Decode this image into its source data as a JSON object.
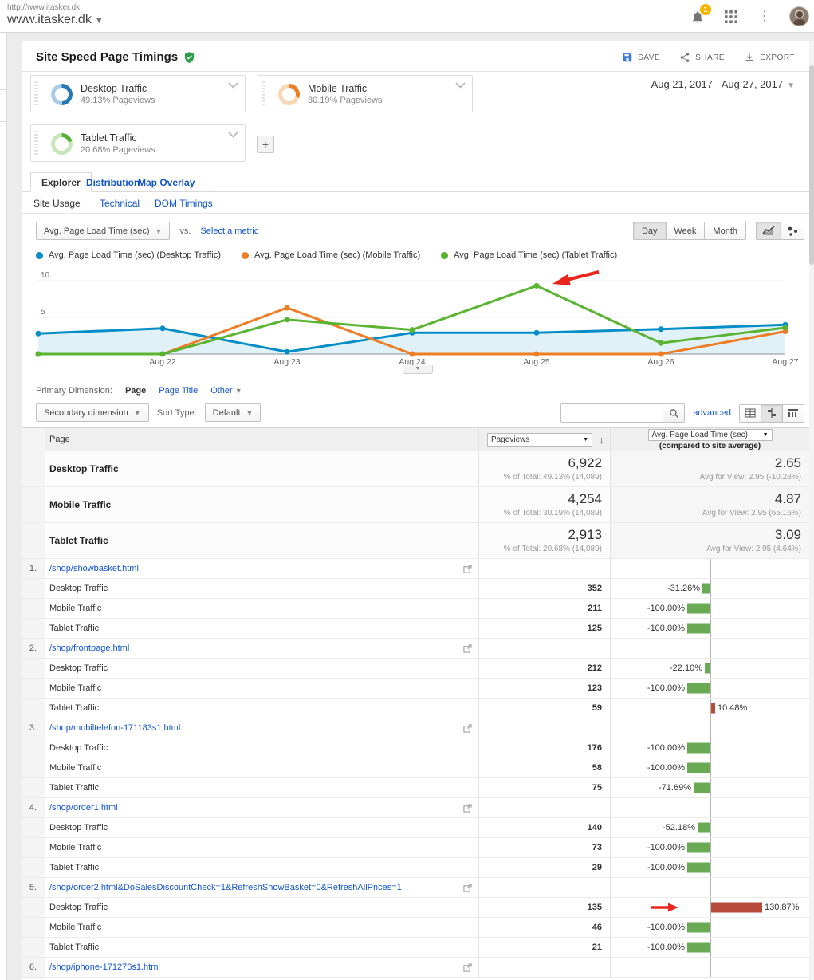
{
  "header": {
    "url": "http://www.itasker.dk",
    "account": "www.itasker.dk",
    "notification_count": "1"
  },
  "report": {
    "title": "Site Speed Page Timings",
    "actions": [
      {
        "label": "SAVE"
      },
      {
        "label": "SHARE"
      },
      {
        "label": "EXPORT"
      }
    ],
    "date_range": "Aug 21, 2017 - Aug 27, 2017"
  },
  "segments": [
    {
      "name": "Desktop Traffic",
      "sub": "49.13% Pageviews",
      "pct": 49.13,
      "color": "#2678b4",
      "color_light": "#a9cde8"
    },
    {
      "name": "Mobile Traffic",
      "sub": "30.19% Pageviews",
      "pct": 30.19,
      "color": "#ed7e26",
      "color_light": "#f8d7b4"
    },
    {
      "name": "Tablet Traffic",
      "sub": "20.68% Pageviews",
      "pct": 20.68,
      "color": "#55b135",
      "color_light": "#c8e6ba"
    }
  ],
  "add_segment_label": "+",
  "tabs": [
    {
      "label": "Explorer",
      "active": true
    },
    {
      "label": "Distribution",
      "active": false
    },
    {
      "label": "Map Overlay",
      "active": false
    }
  ],
  "subtabs": [
    {
      "label": "Site Usage",
      "active": true
    },
    {
      "label": "Technical",
      "active": false
    },
    {
      "label": "DOM Timings",
      "active": false
    }
  ],
  "metric_bar": {
    "metric": "Avg. Page Load Time (sec)",
    "vs": "vs.",
    "select_metric": "Select a metric",
    "granularity": [
      {
        "label": "Day",
        "active": true
      },
      {
        "label": "Week",
        "active": false
      },
      {
        "label": "Month",
        "active": false
      }
    ]
  },
  "legend": [
    {
      "label": "Avg. Page Load Time (sec) (Desktop Traffic)",
      "color": "#058dc7"
    },
    {
      "label": "Avg. Page Load Time (sec) (Mobile Traffic)",
      "color": "#ed7e26"
    },
    {
      "label": "Avg. Page Load Time (sec) (Tablet Traffic)",
      "color": "#5ab432"
    }
  ],
  "chart_data": {
    "type": "line",
    "x_labels": [
      "...",
      "Aug 22",
      "Aug 23",
      "Aug 24",
      "Aug 25",
      "Aug 26",
      "Aug 27"
    ],
    "ylim": [
      0,
      10
    ],
    "yticks": [
      5,
      10
    ],
    "series": [
      {
        "name": "Avg. Page Load Time (sec) (Desktop Traffic)",
        "color": "#058dc7",
        "area": true,
        "values": [
          2.8,
          3.5,
          0.3,
          2.9,
          2.9,
          3.4,
          4.0
        ]
      },
      {
        "name": "Avg. Page Load Time (sec) (Mobile Traffic)",
        "color": "#ed7e26",
        "area": false,
        "values": [
          0,
          0,
          6.3,
          0,
          0,
          0,
          3.1
        ]
      },
      {
        "name": "Avg. Page Load Time (sec) (Tablet Traffic)",
        "color": "#5ab432",
        "area": false,
        "values": [
          0,
          0,
          4.7,
          3.3,
          9.3,
          1.5,
          3.6
        ]
      }
    ],
    "annotation": {
      "type": "red-arrow",
      "target_series": "Tablet Traffic",
      "target_x": "Aug 25"
    }
  },
  "primary_dimension": {
    "label": "Primary Dimension:",
    "options": [
      {
        "label": "Page",
        "active": true
      },
      {
        "label": "Page Title",
        "active": false
      },
      {
        "label": "Other",
        "active": false,
        "caret": true
      }
    ]
  },
  "controls": {
    "secondary_dimension": "Secondary dimension",
    "sort_type_label": "Sort Type:",
    "sort_type_value": "Default",
    "search_placeholder": "",
    "advanced": "advanced",
    "view_options": [
      {
        "name": "table-view",
        "active": false
      },
      {
        "name": "comparison-view",
        "active": true
      },
      {
        "name": "pivot-view",
        "active": false
      }
    ]
  },
  "table": {
    "col_page": "Page",
    "col_pageviews": "Pageviews",
    "col_metric": "Avg. Page Load Time (sec)",
    "col_metric_sub": "(compared to site average)",
    "bar_colors": {
      "negative": "#6aaa55",
      "positive": "#b84a3c"
    },
    "summary": [
      {
        "name": "Desktop Traffic",
        "pageviews": "6,922",
        "pv_sub": "% of Total: 49.13% (14,089)",
        "metric": "2.65",
        "metric_sub": "Avg for View: 2.95 (-10.28%)"
      },
      {
        "name": "Mobile Traffic",
        "pageviews": "4,254",
        "pv_sub": "% of Total: 30.19% (14,089)",
        "metric": "4.87",
        "metric_sub": "Avg for View: 2.95 (65.16%)"
      },
      {
        "name": "Tablet Traffic",
        "pageviews": "2,913",
        "pv_sub": "% of Total: 20.68% (14,089)",
        "metric": "3.09",
        "metric_sub": "Avg for View: 2.95 (4.64%)"
      }
    ],
    "groups": [
      {
        "num": "1.",
        "url": "/shop/showbasket.html",
        "rows": [
          {
            "name": "Desktop Traffic",
            "pageviews": "352",
            "delta": -31.26,
            "delta_label": "-31.26%"
          },
          {
            "name": "Mobile Traffic",
            "pageviews": "211",
            "delta": -100,
            "delta_label": "-100.00%"
          },
          {
            "name": "Tablet Traffic",
            "pageviews": "125",
            "delta": -100,
            "delta_label": "-100.00%"
          }
        ]
      },
      {
        "num": "2.",
        "url": "/shop/frontpage.html",
        "rows": [
          {
            "name": "Desktop Traffic",
            "pageviews": "212",
            "delta": -22.1,
            "delta_label": "-22.10%"
          },
          {
            "name": "Mobile Traffic",
            "pageviews": "123",
            "delta": -100,
            "delta_label": "-100.00%"
          },
          {
            "name": "Tablet Traffic",
            "pageviews": "59",
            "delta": 10.48,
            "delta_label": "10.48%"
          }
        ]
      },
      {
        "num": "3.",
        "url": "/shop/mobiltelefon-171183s1.html",
        "rows": [
          {
            "name": "Desktop Traffic",
            "pageviews": "176",
            "delta": -100,
            "delta_label": "-100.00%"
          },
          {
            "name": "Mobile Traffic",
            "pageviews": "58",
            "delta": -100,
            "delta_label": "-100.00%"
          },
          {
            "name": "Tablet Traffic",
            "pageviews": "75",
            "delta": -71.69,
            "delta_label": "-71.69%"
          }
        ]
      },
      {
        "num": "4.",
        "url": "/shop/order1.html",
        "rows": [
          {
            "name": "Desktop Traffic",
            "pageviews": "140",
            "delta": -52.18,
            "delta_label": "-52.18%"
          },
          {
            "name": "Mobile Traffic",
            "pageviews": "73",
            "delta": -100,
            "delta_label": "-100.00%"
          },
          {
            "name": "Tablet Traffic",
            "pageviews": "29",
            "delta": -100,
            "delta_label": "-100.00%"
          }
        ]
      },
      {
        "num": "5.",
        "url": "/shop/order2.html&DoSalesDiscountCheck=1&RefreshShowBasket=0&RefreshAllPrices=1",
        "rows": [
          {
            "name": "Desktop Traffic",
            "pageviews": "135",
            "delta": 130.87,
            "delta_label": "130.87%",
            "arrow": true
          },
          {
            "name": "Mobile Traffic",
            "pageviews": "46",
            "delta": -100,
            "delta_label": "-100.00%"
          },
          {
            "name": "Tablet Traffic",
            "pageviews": "21",
            "delta": -100,
            "delta_label": "-100.00%"
          }
        ]
      },
      {
        "num": "6.",
        "url": "/shop/iphone-171276s1.html",
        "rows": []
      }
    ]
  }
}
